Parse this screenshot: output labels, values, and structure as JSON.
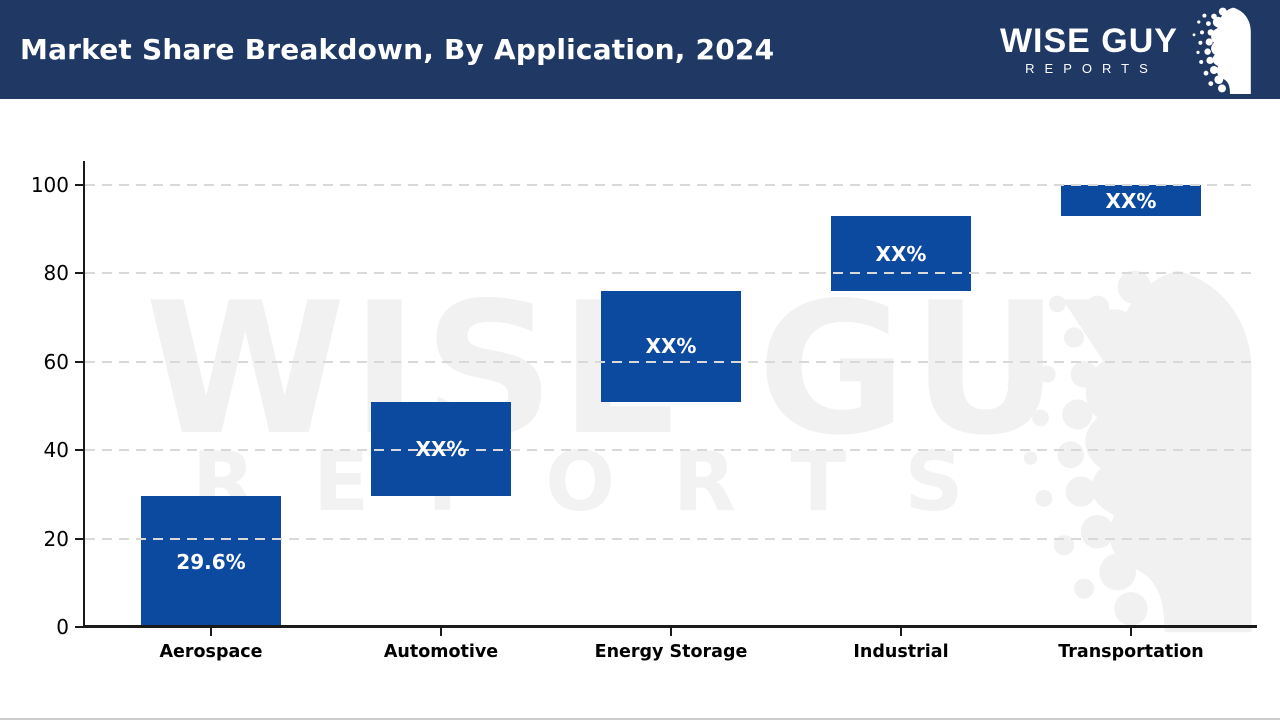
{
  "header": {
    "title": "Market Share Breakdown, By Application, 2024",
    "bg_color": "#1f3864",
    "text_color": "#ffffff",
    "logo": {
      "brand_line1": "WISE GUY",
      "brand_line2": "REPORTS",
      "icon": "dotted-face-profile-icon"
    }
  },
  "watermark": {
    "line1": "WISE GUY",
    "line2": "REPORTS"
  },
  "chart_data": {
    "type": "bar",
    "subtype": "floating-waterfall",
    "title": "Market Share Breakdown, By Application, 2024",
    "categories": [
      "Aerospace",
      "Automotive",
      "Energy Storage",
      "Industrial",
      "Transportation"
    ],
    "segments": [
      {
        "category": "Aerospace",
        "start": 0,
        "end": 29.6,
        "size": 29.6,
        "label": "29.6%"
      },
      {
        "category": "Automotive",
        "start": 29.6,
        "end": 51,
        "size": 21.4,
        "label": "XX%"
      },
      {
        "category": "Energy Storage",
        "start": 51,
        "end": 76,
        "size": 25,
        "label": "XX%"
      },
      {
        "category": "Industrial",
        "start": 76,
        "end": 93,
        "size": 17,
        "label": "XX%"
      },
      {
        "category": "Transportation",
        "start": 93,
        "end": 100,
        "size": 7,
        "label": "XX%"
      }
    ],
    "xlabel": "",
    "ylabel": "",
    "y_ticks": [
      0,
      20,
      40,
      60,
      80,
      100
    ],
    "ylim": [
      0,
      105
    ],
    "grid": "horizontal-dashed-over-bars",
    "legend": "none",
    "bar_color": "#0c4a9f",
    "bar_label_color": "#ffffff",
    "axis_color": "#1a1a1a",
    "grid_color": "#d9d9d9"
  }
}
